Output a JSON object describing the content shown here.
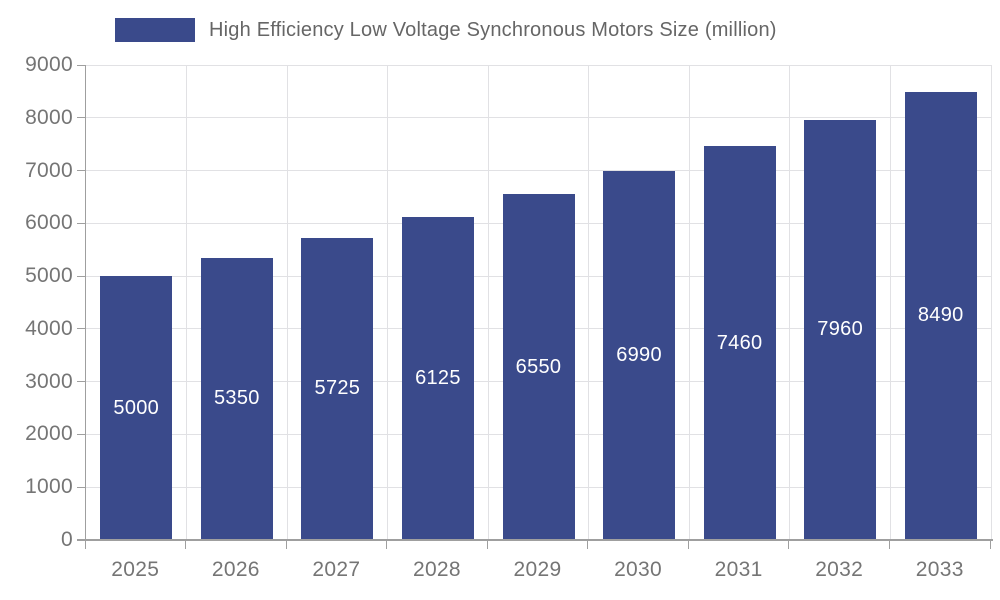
{
  "chart_data": {
    "type": "bar",
    "title": "High Efficiency Low Voltage Synchronous Motors Size (million)",
    "legend": [
      "High Efficiency Low Voltage Synchronous Motors Size (million)"
    ],
    "legend_position": "top-left",
    "categories": [
      "2025",
      "2026",
      "2027",
      "2028",
      "2029",
      "2030",
      "2031",
      "2032",
      "2033"
    ],
    "values": [
      5000,
      5350,
      5725,
      6125,
      6550,
      6990,
      7460,
      7960,
      8490
    ],
    "bar_labels": [
      "5000",
      "5350",
      "5725",
      "6125",
      "6550",
      "6990",
      "7460",
      "7960",
      "8490"
    ],
    "xlabel": "",
    "ylabel": "",
    "ylim": [
      0,
      9000
    ],
    "yticks": [
      0,
      1000,
      2000,
      3000,
      4000,
      5000,
      6000,
      7000,
      8000,
      9000
    ],
    "grid": true,
    "colors": {
      "bar": "#3a4a8b",
      "bar_label": "#ffffff",
      "axis_line": "#9f9f9f",
      "tick_mark": "#9f9f9f",
      "gridline": "#e1e1e4",
      "axis_label": "#757575",
      "legend_text": "#666666",
      "background": "#ffffff"
    }
  }
}
